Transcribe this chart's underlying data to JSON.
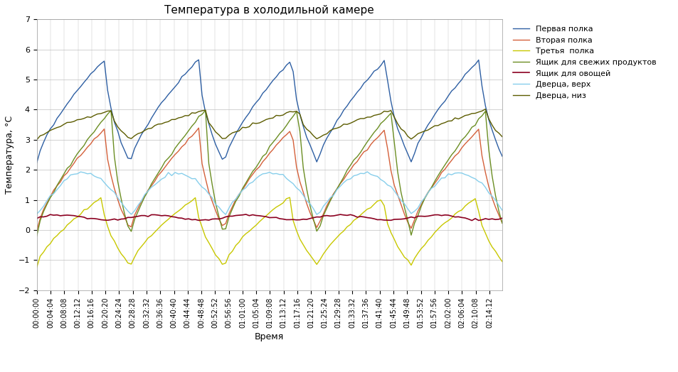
{
  "title": "Температура в холодильной камере",
  "xlabel": "Время",
  "ylabel": "Температура, °С",
  "ylim": [
    -2,
    7
  ],
  "yticks": [
    -2,
    -1,
    0,
    1,
    2,
    3,
    4,
    5,
    6,
    7
  ],
  "legend": [
    "Первая полка",
    "Вторая полка",
    "Третья  полка",
    "Ящик для свежих продуктов",
    "Ящик для овощей",
    "Дверца, верх",
    "Дверца, низ"
  ],
  "colors": [
    "#2e5fa3",
    "#d4603a",
    "#c8c800",
    "#6b8e23",
    "#8b0020",
    "#87ceeb",
    "#5c5c00"
  ],
  "linewidths": [
    1.0,
    1.0,
    1.0,
    1.0,
    1.2,
    1.0,
    1.0
  ],
  "background_color": "#ffffff",
  "grid_color": "#c0c0c0"
}
